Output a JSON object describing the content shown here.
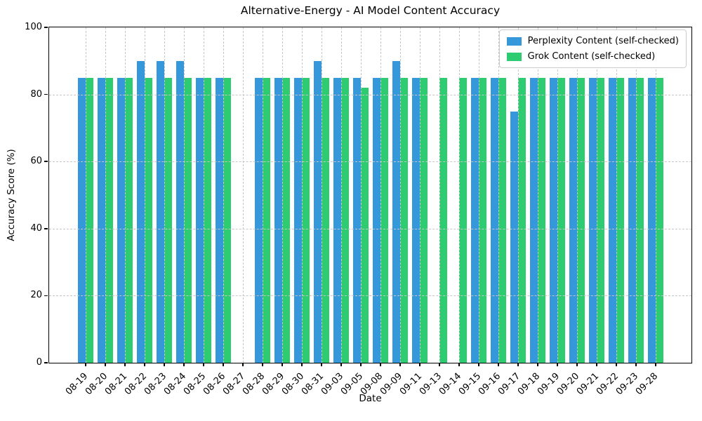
{
  "chart_data": {
    "type": "bar",
    "title": "Alternative-Energy - AI Model Content Accuracy",
    "xlabel": "Date",
    "ylabel": "Accuracy Score (%)",
    "ylim": [
      0,
      100
    ],
    "yticks": [
      0,
      20,
      40,
      60,
      80,
      100
    ],
    "grid": true,
    "grid_style": "dashed",
    "legend_position": "upper-right",
    "categories": [
      "08-19",
      "08-20",
      "08-21",
      "08-22",
      "08-23",
      "08-24",
      "08-25",
      "08-26",
      "08-27",
      "08-28",
      "08-29",
      "08-30",
      "08-31",
      "09-03",
      "09-05",
      "09-08",
      "09-09",
      "09-11",
      "09-13",
      "09-14",
      "09-15",
      "09-16",
      "09-17",
      "09-18",
      "09-19",
      "09-20",
      "09-21",
      "09-22",
      "09-23",
      "09-28"
    ],
    "series": [
      {
        "name": "Perplexity Content (self-checked)",
        "color": "#3498db",
        "values": [
          85,
          85,
          85,
          90,
          90,
          90,
          85,
          85,
          null,
          85,
          85,
          85,
          90,
          85,
          85,
          85,
          90,
          85,
          null,
          null,
          85,
          85,
          75,
          85,
          85,
          85,
          85,
          85,
          85,
          85
        ]
      },
      {
        "name": "Grok Content (self-checked)",
        "color": "#2ecc71",
        "values": [
          85,
          85,
          85,
          85,
          85,
          85,
          85,
          85,
          null,
          85,
          85,
          85,
          85,
          85,
          82,
          85,
          85,
          85,
          85,
          85,
          85,
          85,
          85,
          85,
          85,
          85,
          85,
          85,
          85,
          85
        ]
      }
    ]
  }
}
